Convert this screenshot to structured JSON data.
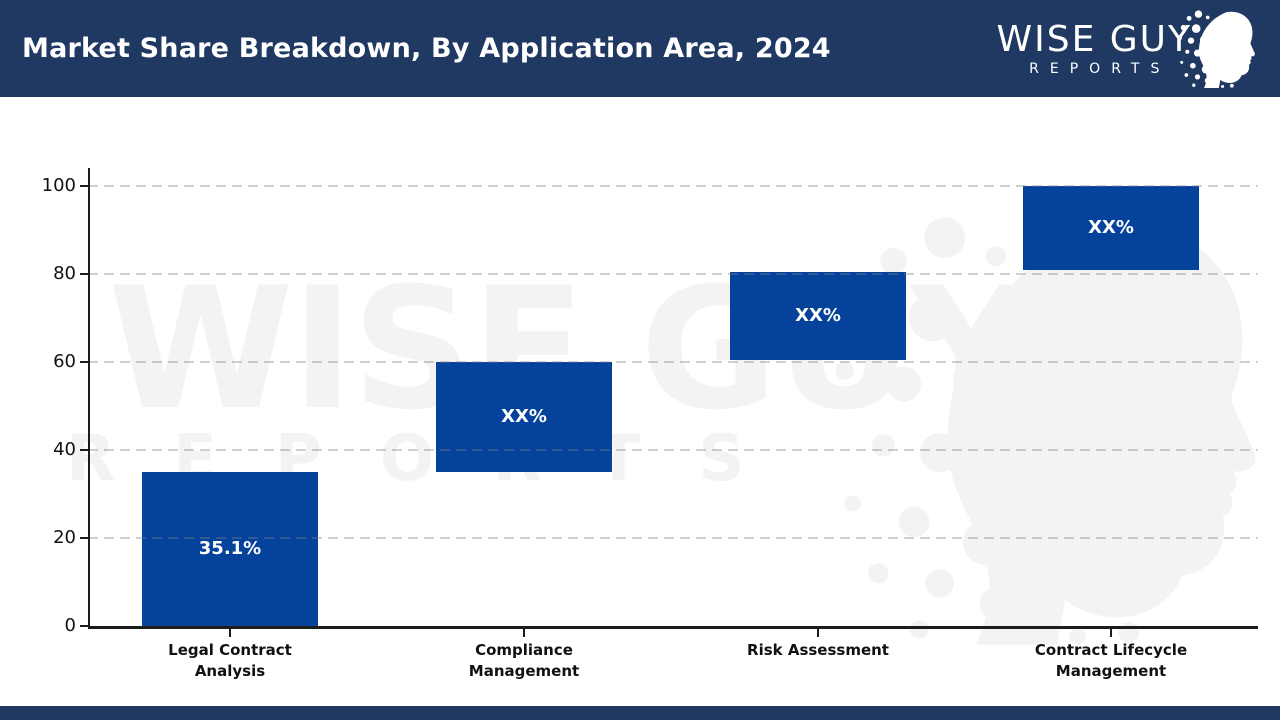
{
  "header": {
    "title": "Market Share Breakdown, By Application Area, 2024",
    "bg_color": "#203962",
    "logo": {
      "line1": "WISE GUY",
      "line2": "REPORTS"
    }
  },
  "watermark": {
    "line1": "WISE GUY",
    "line2": "REPORTS"
  },
  "footer": {
    "bg_color": "#203962"
  },
  "chart_data": {
    "type": "bar",
    "subtype": "waterfall",
    "title": "Market Share Breakdown, By Application Area, 2024",
    "xlabel": "",
    "ylabel": "",
    "ylim": [
      0,
      100
    ],
    "yticks": [
      0,
      20,
      40,
      60,
      80,
      100
    ],
    "grid": "horizontal-dashed",
    "legend": "none",
    "bar_color": "#05429b",
    "bar_label_color": "#ffffff",
    "categories": [
      "Legal Contract Analysis",
      "Compliance Management",
      "Risk Assessment",
      "Contract Lifecycle Management"
    ],
    "category_label_lines": [
      [
        "Legal Contract",
        "Analysis"
      ],
      [
        "Compliance",
        "Management"
      ],
      [
        "Risk Assessment"
      ],
      [
        "Contract Lifecycle",
        "Management"
      ]
    ],
    "segments": [
      {
        "category": "Legal Contract Analysis",
        "start": 0,
        "end": 35.1,
        "value": 35.1,
        "label": "35.1%"
      },
      {
        "category": "Compliance Management",
        "start": 35.1,
        "end": 60,
        "value": 24.9,
        "label": "XX%"
      },
      {
        "category": "Risk Assessment",
        "start": 60.5,
        "end": 80.5,
        "value": 20,
        "label": "XX%"
      },
      {
        "category": "Contract Lifecycle Management",
        "start": 81,
        "end": 100,
        "value": 19,
        "label": "XX%"
      }
    ]
  }
}
